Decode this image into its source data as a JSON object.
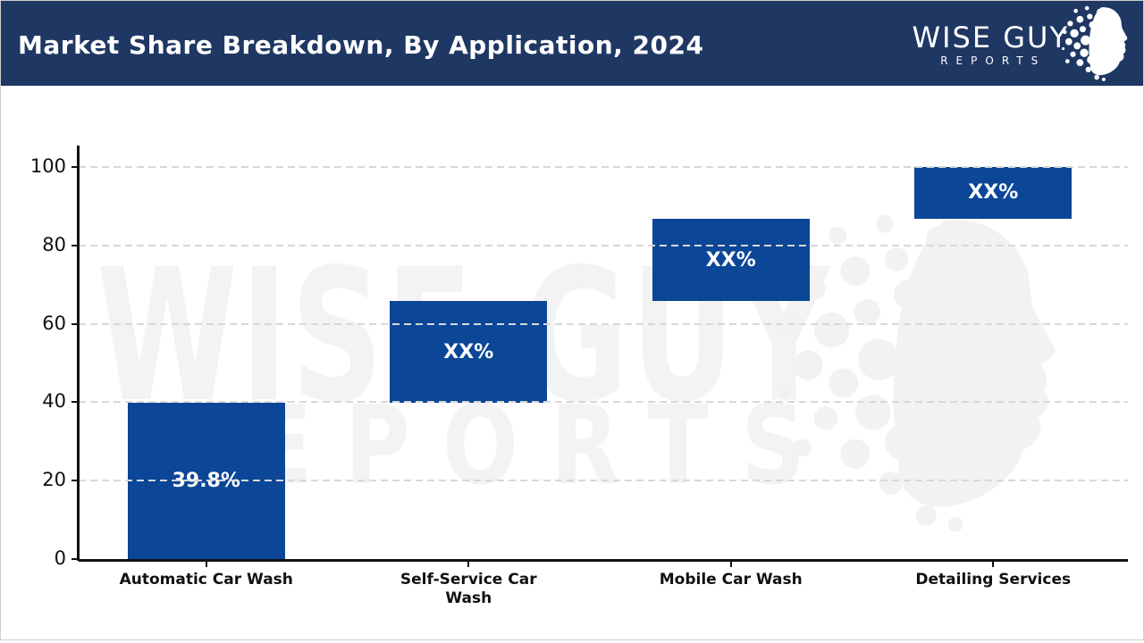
{
  "header": {
    "title": "Market Share Breakdown, By Application, 2024",
    "bg_color": "#1f3763",
    "logo": {
      "line1": "WISE GUY",
      "line2": "REPORTS"
    }
  },
  "watermark": {
    "line1": "WISE GUY",
    "line2": "REPORTS"
  },
  "chart_data": {
    "type": "bar",
    "subtype": "stacked-waterfall-segments",
    "title": "Market Share Breakdown, By Application, 2024",
    "categories": [
      "Automatic Car Wash",
      "Self-Service Car Wash",
      "Mobile Car Wash",
      "Detailing Services"
    ],
    "tick_labels": [
      "Automatic Car Wash",
      "Self-Service Car\nWash",
      "Mobile Car Wash",
      "Detailing Services"
    ],
    "segments": [
      {
        "category": "Automatic Car Wash",
        "start": 0,
        "end": 39.8,
        "label": "39.8%"
      },
      {
        "category": "Self-Service Car Wash",
        "start": 39.8,
        "end": 65.8,
        "label": "XX%"
      },
      {
        "category": "Mobile Car Wash",
        "start": 65.8,
        "end": 86.8,
        "label": "XX%"
      },
      {
        "category": "Detailing Services",
        "start": 86.8,
        "end": 100,
        "label": "XX%"
      }
    ],
    "yticks": [
      0,
      20,
      40,
      60,
      80,
      100
    ],
    "ylim": [
      0,
      105
    ],
    "xlabel": "",
    "ylabel": "",
    "grid": "horizontal-dashed",
    "legend": "none",
    "bar_color": "#0b4697",
    "label_color": "#ffffff"
  }
}
